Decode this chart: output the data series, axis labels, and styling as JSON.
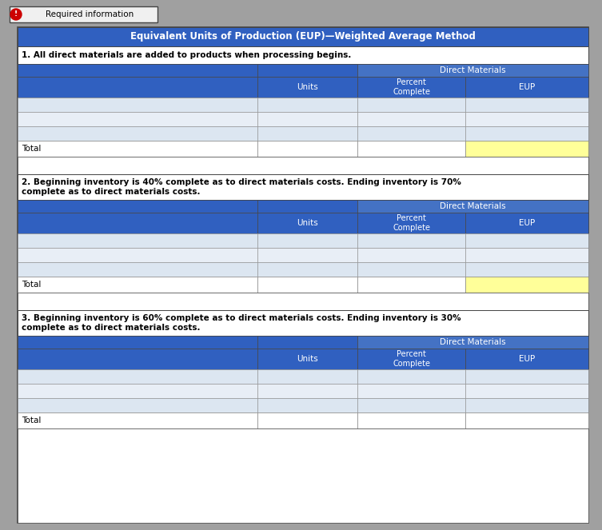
{
  "title": "Equivalent Units of Production (EUP)—Weighted Average Method",
  "required_info_label": "Required information",
  "section1_label": "1. All direct materials are added to products when processing begins.",
  "section2_label": "2. Beginning inventory is 40% complete as to direct materials costs. Ending inventory is 70%\ncomplete as to direct materials costs.",
  "section3_label": "3. Beginning inventory is 60% complete as to direct materials costs. Ending inventory is 30%\ncomplete as to direct materials costs.",
  "col_headers": [
    "Units",
    "Percent\nComplete",
    "EUP"
  ],
  "dm_header": "Direct Materials",
  "total_label": "Total",
  "num_data_rows": 3,
  "colors": {
    "header_blue": "#3060C0",
    "medium_blue": "#4472C4",
    "bright_blue": "#4080E0",
    "light_blue_row": "#C5D5EA",
    "white_row": "#FFFFFF",
    "yellow_highlight": "#FFFF99",
    "very_light_blue": "#DCE6F1",
    "border_dark": "#444444",
    "border_light": "#888888",
    "text_white": "#FFFFFF",
    "text_black": "#000000",
    "bg_gray": "#A0A0A0",
    "required_bg": "#F0F0F0",
    "required_border": "#CC0000"
  },
  "fig_width": 7.53,
  "fig_height": 6.63,
  "dpi": 100
}
